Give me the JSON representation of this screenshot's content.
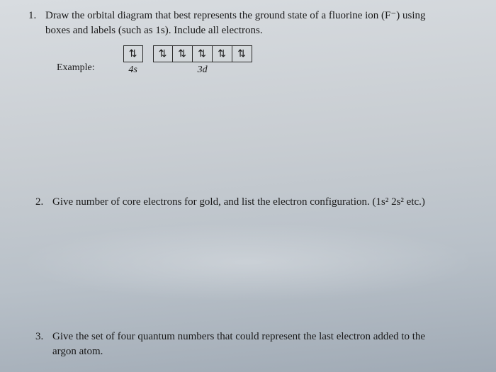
{
  "q1": {
    "num": "1.",
    "text_line1": "Draw the orbital diagram that best represents the ground state of a fluorine ion (F⁻) using",
    "text_line2": "boxes and labels (such as 1s).  Include all electrons.",
    "example_label": "Example:",
    "orbital_4s": {
      "label": "4s",
      "boxes": [
        "⇅"
      ]
    },
    "orbital_3d": {
      "label": "3d",
      "boxes": [
        "⇅",
        "⇅",
        "⇅",
        "⇅",
        "⇅"
      ]
    }
  },
  "q2": {
    "num": "2.",
    "text": "Give number of core electrons for gold, and list the electron configuration. (1s² 2s² etc.)"
  },
  "q3": {
    "num": "3.",
    "text_line1": "Give the set of four quantum numbers that could represent the last electron added to the",
    "text_line2": "argon atom."
  },
  "colors": {
    "text": "#1a1a1a",
    "border": "#2a2a2a"
  }
}
